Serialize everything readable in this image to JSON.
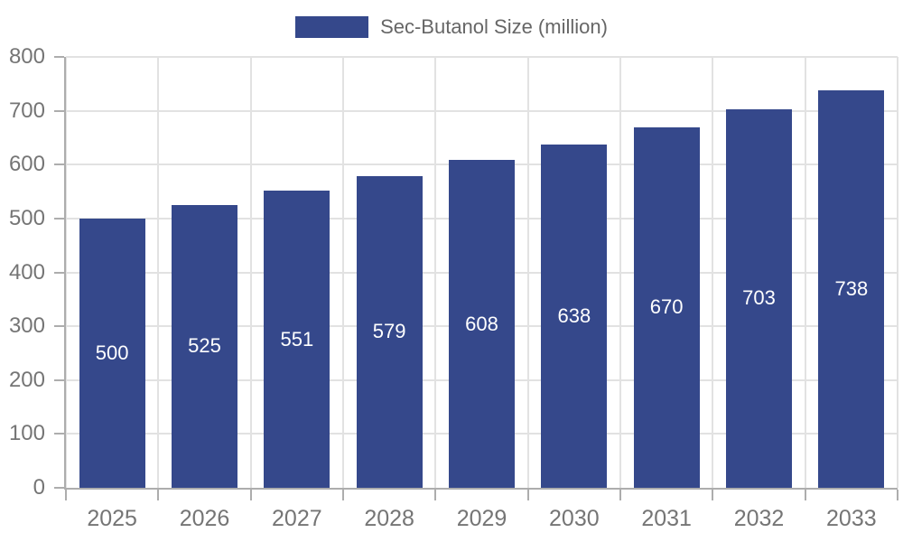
{
  "legend": {
    "label": "Sec-Butanol Size (million)"
  },
  "chart_data": {
    "type": "bar",
    "title": "",
    "series_name": "Sec-Butanol Size (million)",
    "categories": [
      "2025",
      "2026",
      "2027",
      "2028",
      "2029",
      "2030",
      "2031",
      "2032",
      "2033"
    ],
    "values": [
      500,
      525,
      551,
      579,
      608,
      638,
      670,
      703,
      738
    ],
    "xlabel": "",
    "ylabel": "",
    "ylim": [
      0,
      800
    ],
    "yticks": [
      0,
      100,
      200,
      300,
      400,
      500,
      600,
      700,
      800
    ],
    "grid": true,
    "legend_position": "top",
    "value_labels": "inside-center"
  },
  "colors": {
    "bar": "#35488b",
    "grid": "#e2e2e2",
    "axis": "#adadad",
    "tick_label": "#757575",
    "value_label": "#ffffff",
    "legend_text": "#666666",
    "background": "#ffffff"
  }
}
